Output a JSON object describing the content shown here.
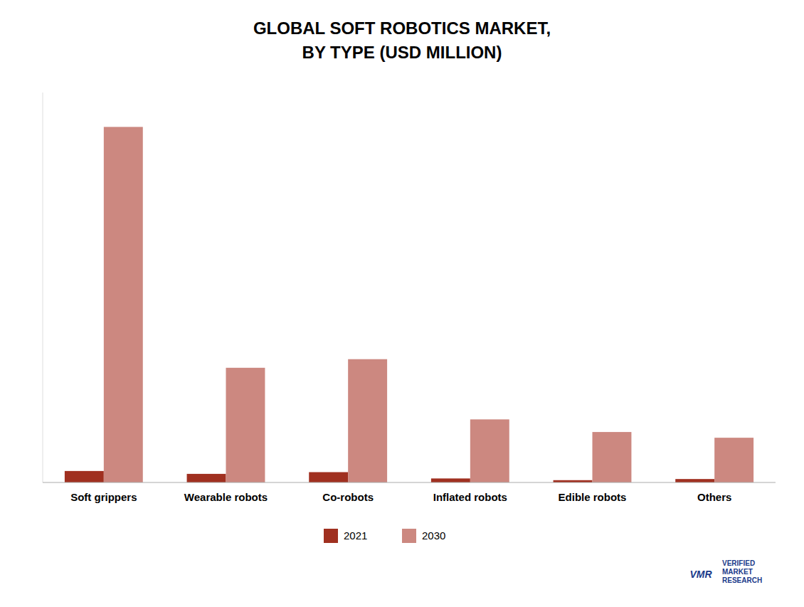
{
  "chart_data": {
    "type": "bar",
    "title": "GLOBAL SOFT ROBOTICS MARKET,\nBY TYPE (USD MILLION)",
    "categories": [
      "Soft grippers",
      "Wearable robots",
      "Co-robots",
      "Inflated robots",
      "Edible robots",
      "Others"
    ],
    "series": [
      {
        "name": "2021",
        "color": "#a03020",
        "values": [
          20,
          15,
          18,
          7,
          4,
          6
        ]
      },
      {
        "name": "2030",
        "color": "#cc8880",
        "values": [
          620,
          200,
          215,
          110,
          88,
          78
        ]
      }
    ],
    "ylim": [
      0,
      680
    ],
    "tick_labels": "x",
    "grid": false,
    "legend": "bottom",
    "annotations": [
      "VERIFIED\nMARKET\nRESEARCH",
      "VMR"
    ]
  }
}
